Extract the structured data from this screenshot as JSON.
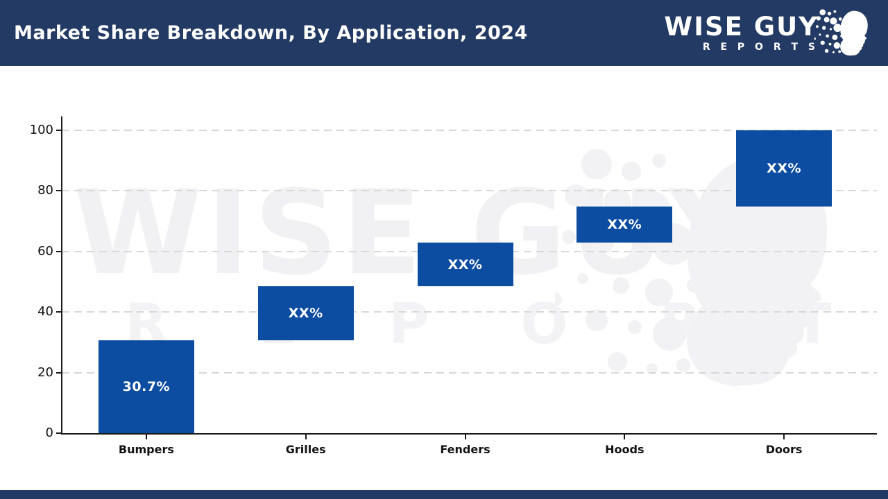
{
  "header": {
    "title": "Market Share Breakdown, By Application, 2024",
    "bg_color": "#223a64",
    "logo": {
      "line1": "WISE GUY",
      "line2": "R E P O R T S"
    }
  },
  "watermark": {
    "line1": "WISE GUY",
    "line2": "R E P O R T S"
  },
  "chart_data": {
    "type": "bar",
    "subtype": "waterfall",
    "title": "Market Share Breakdown, By Application, 2024",
    "categories": [
      "Bumpers",
      "Grilles",
      "Fenders",
      "Hoods",
      "Doors"
    ],
    "segments": [
      {
        "category": "Bumpers",
        "start": 0,
        "end": 30.7,
        "label": "30.7%"
      },
      {
        "category": "Grilles",
        "start": 30.7,
        "end": 48.5,
        "label": "XX%"
      },
      {
        "category": "Fenders",
        "start": 48.5,
        "end": 62.8,
        "label": "XX%"
      },
      {
        "category": "Hoods",
        "start": 62.8,
        "end": 74.7,
        "label": "XX%"
      },
      {
        "category": "Doors",
        "start": 74.7,
        "end": 100,
        "label": "XX%"
      }
    ],
    "y_ticks": [
      0,
      20,
      40,
      60,
      80,
      100
    ],
    "ylim": [
      0,
      105
    ],
    "xlabel": "",
    "ylabel": "",
    "grid": "horizontal-dashed",
    "legend": "none",
    "bar_color": "#0d4da1",
    "bar_label_color": "#ffffff"
  },
  "footer": {
    "bg_color": "#223a64"
  }
}
